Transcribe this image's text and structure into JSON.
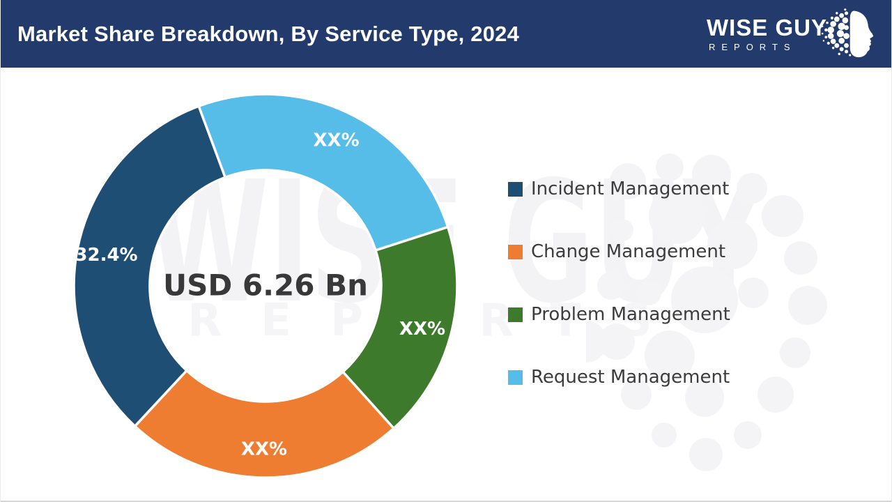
{
  "header": {
    "title": "Market Share Breakdown, By Service Type, 2024",
    "background_color": "#223A6C",
    "text_color": "#FFFFFF"
  },
  "logo": {
    "line1": "WISE GUY",
    "line2": "REPORTS"
  },
  "watermark": {
    "line1": "WISE GUY",
    "line2": "REPORTS"
  },
  "chart_data": {
    "type": "pie",
    "variant": "donut",
    "title": "Market Share Breakdown, By Service Type, 2024",
    "center_label": "USD 6.26 Bn",
    "start_angle_deg": -20.4,
    "clockwise": true,
    "legend_position": "right",
    "series": [
      {
        "name": "Request Management",
        "value": 25.7,
        "label": "XX%",
        "color": "#55BDE8"
      },
      {
        "name": "Problem Management",
        "value": 18.3,
        "label": "XX%",
        "color": "#3E7A2B"
      },
      {
        "name": "Change Management",
        "value": 23.6,
        "label": "XX%",
        "color": "#EE7D31"
      },
      {
        "name": "Incident Management",
        "value": 32.4,
        "label": "32.4%",
        "color": "#1F4E74"
      }
    ]
  },
  "legend": {
    "items": [
      {
        "label": "Incident Management",
        "color": "#1F4E74"
      },
      {
        "label": "Change Management",
        "color": "#EE7D31"
      },
      {
        "label": "Problem Management",
        "color": "#3E7A2B"
      },
      {
        "label": "Request Management",
        "color": "#55BDE8"
      }
    ]
  }
}
